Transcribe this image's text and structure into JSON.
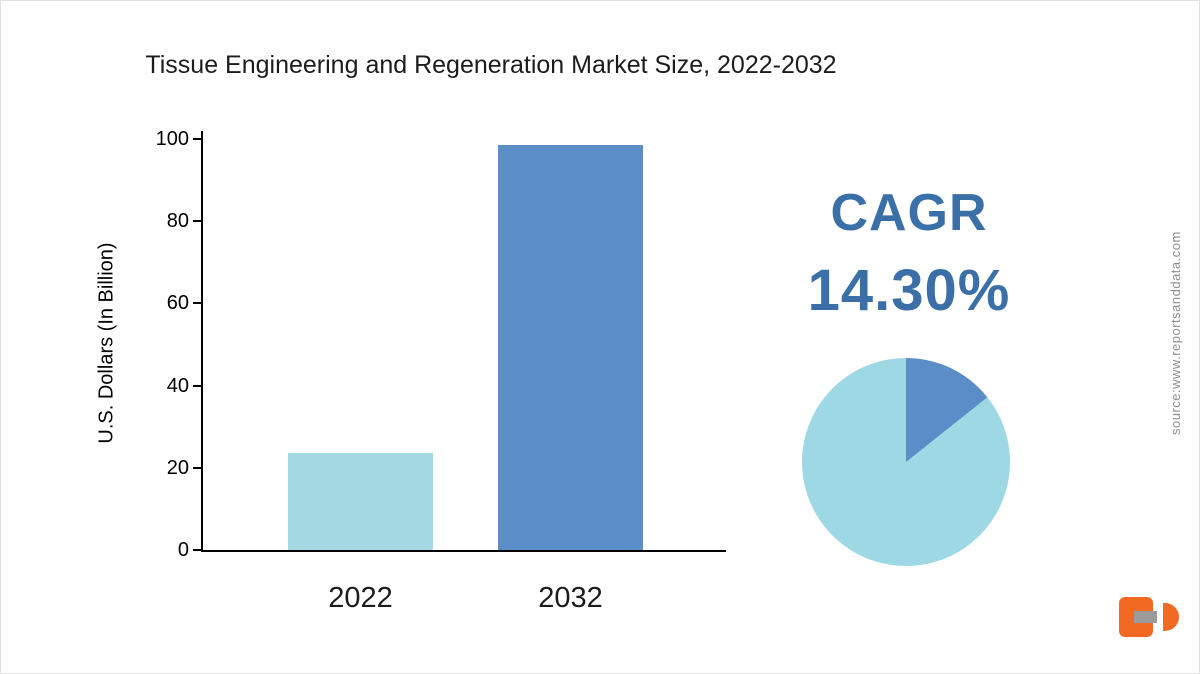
{
  "page": {
    "title": "Tissue Engineering and Regeneration Market Size, 2022-2032",
    "source": "source:www.reportsanddata.com"
  },
  "cagr": {
    "label": "CAGR",
    "value_text": "14.30%",
    "percent": 14.3
  },
  "colors": {
    "bar_2022": "#a4d9e4",
    "bar_2032": "#5b8ec8",
    "pie_slice": "#5b8ec8",
    "pie_rest": "#9ed8e4",
    "accent_text": "#3a6fa8",
    "axis": "#000000",
    "source_text": "#8f8f8f",
    "logo_orange": "#f26a21",
    "logo_gray": "#9b9b9b"
  },
  "chart_data": [
    {
      "type": "bar",
      "title": "Tissue Engineering and Regeneration Market Size, 2022-2032",
      "categories": [
        "2022",
        "2032"
      ],
      "values": [
        23.7,
        98.5
      ],
      "xlabel": "",
      "ylabel": "U.S. Dollars (In Billion)",
      "ylim": [
        0,
        100
      ],
      "yticks": [
        0,
        20,
        40,
        60,
        80,
        100
      ],
      "bar_colors": [
        "#a4d9e4",
        "#5b8ec8"
      ],
      "grid": false,
      "legend": false
    },
    {
      "type": "pie",
      "labels": [
        "CAGR",
        "remainder"
      ],
      "values": [
        14.3,
        85.7
      ],
      "colors": [
        "#5b8ec8",
        "#9ed8e4"
      ],
      "start_angle_deg": 0,
      "direction": "clockwise"
    }
  ]
}
